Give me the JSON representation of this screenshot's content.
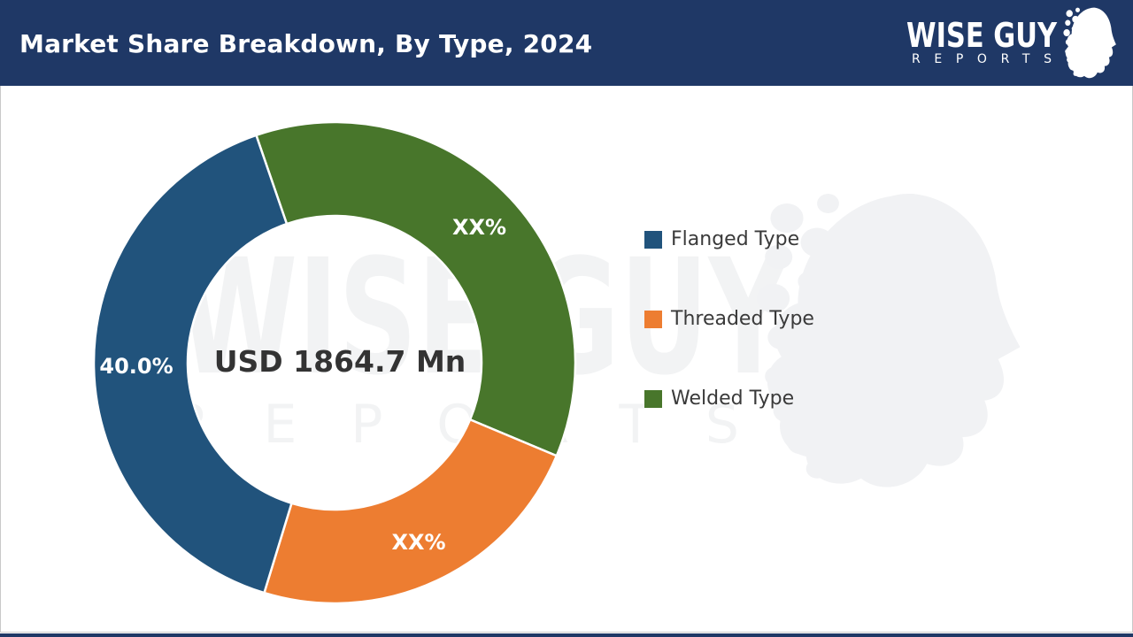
{
  "header": {
    "title": "Market Share Breakdown, By Type, 2024",
    "logo": {
      "line1": "WISE GUY",
      "line2": "REPORTS"
    }
  },
  "watermark": {
    "line1": "WISE GUY",
    "line2": "REPORTS"
  },
  "colors": {
    "header_bg": "#1F3866",
    "border": "#C9C9C9",
    "center_text": "#333333",
    "legend_text": "#3A3A3A",
    "watermark": "#F2F3F4"
  },
  "chart_data": {
    "type": "pie",
    "donut": true,
    "title": "Market Share Breakdown, By Type, 2024",
    "center_label": "USD 1864.7 Mn",
    "start_angle_deg_clockwise_from_top": -19,
    "legend_position": "right",
    "segments": [
      {
        "name": "Welded Type",
        "value_pct": 36.6,
        "display_label": "XX%",
        "color": "#48762B"
      },
      {
        "name": "Threaded Type",
        "value_pct": 23.4,
        "display_label": "XX%",
        "color": "#ED7D31"
      },
      {
        "name": "Flanged Type",
        "value_pct": 40.0,
        "display_label": "40.0%",
        "color": "#21537C"
      }
    ],
    "legend": [
      {
        "label": "Flanged Type",
        "color": "#21537C"
      },
      {
        "label": "Threaded Type",
        "color": "#ED7D31"
      },
      {
        "label": "Welded Type",
        "color": "#48762B"
      }
    ]
  }
}
